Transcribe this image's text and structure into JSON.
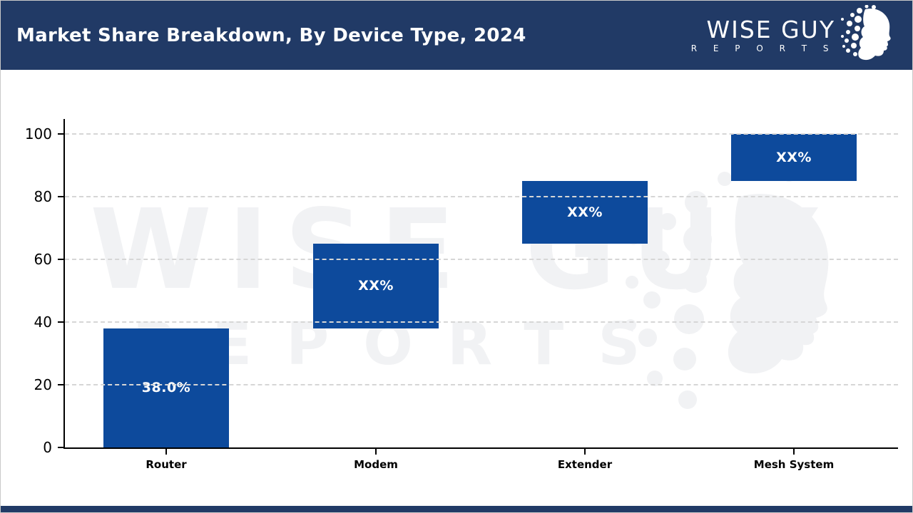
{
  "header": {
    "title": "Market Share Breakdown, By Device Type, 2024",
    "logo": {
      "line1": "WISE GUY",
      "line2": "R E P O R T S"
    }
  },
  "watermark": {
    "line1": "WISE GUY",
    "line2": "REPORTS"
  },
  "chart_data": {
    "type": "bar",
    "subtype": "waterfall",
    "title": "Market Share Breakdown, By Device Type, 2024",
    "categories": [
      "Router",
      "Modem",
      "Extender",
      "Mesh System"
    ],
    "segments": [
      {
        "category": "Router",
        "start": 0,
        "end": 38,
        "label": "38.0%"
      },
      {
        "category": "Modem",
        "start": 38,
        "end": 65,
        "label": "XX%"
      },
      {
        "category": "Extender",
        "start": 65,
        "end": 85,
        "label": "XX%"
      },
      {
        "category": "Mesh System",
        "start": 85,
        "end": 100,
        "label": "XX%"
      }
    ],
    "yticks": [
      0,
      20,
      40,
      60,
      80,
      100
    ],
    "ylim": [
      0,
      104.8
    ],
    "grid": "dashed-horizontal-over-bars",
    "legend": "none",
    "xlabel": "",
    "ylabel": ""
  },
  "colors": {
    "header_bg": "#213a66",
    "footer_bg": "#213a66",
    "bar": "#0d4a9c",
    "bar_label": "#ffffff",
    "grid": "#d6d6d6",
    "axis": "#000000",
    "watermark": "#f1f2f4"
  }
}
